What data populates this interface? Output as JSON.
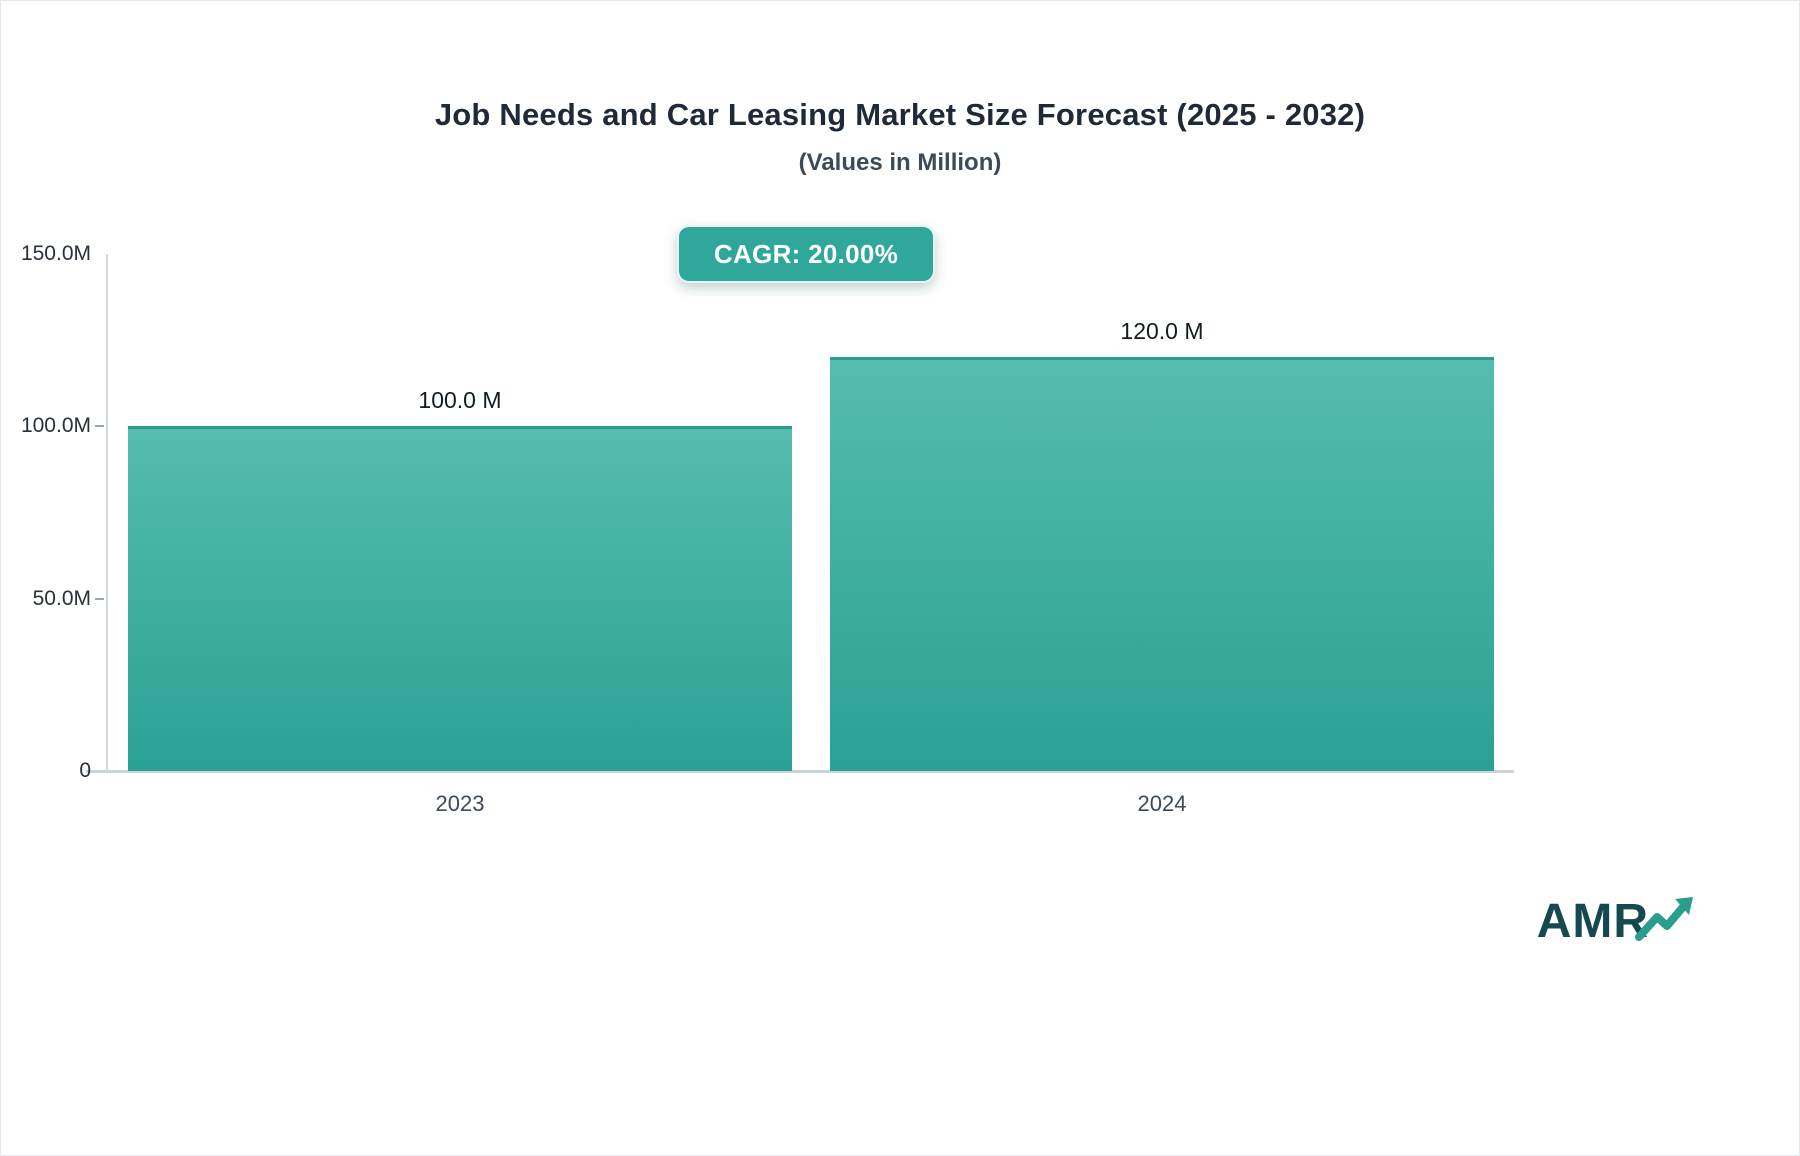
{
  "header": {
    "title": "Job Needs and Car Leasing Market Size Forecast (2025 - 2032)",
    "subtitle": "(Values in Million)",
    "cagr_badge": "CAGR: 20.00%"
  },
  "chart_data": {
    "type": "bar",
    "title": "Job Needs and Car Leasing Market Size Forecast (2025 - 2032)",
    "subtitle": "(Values in Million)",
    "cagr_label": "CAGR: 20.00%",
    "cagr_percent": 20.0,
    "unit": "Million",
    "categories": [
      "2023",
      "2024"
    ],
    "values": [
      100.0,
      120.0
    ],
    "value_labels": [
      "100.0 M",
      "120.0 M"
    ],
    "xlabel": "",
    "ylabel": "",
    "ylim": [
      0,
      150
    ],
    "yticks": [
      {
        "value": 150,
        "label": "150.0M"
      },
      {
        "value": 100,
        "label": "100.0M"
      },
      {
        "value": 50,
        "label": "50.0M"
      },
      {
        "value": 0,
        "label": "0"
      }
    ],
    "grid": false,
    "legend_position": "none",
    "colors": {
      "bar_gradient_top": "#55bcae",
      "bar_gradient_bottom": "#2aa195",
      "bar_top_edge": "#2d9b8f",
      "badge_background": "#2fa79b",
      "badge_text": "#ffffff",
      "axis_line": "#ccd3d6",
      "title_text": "#1f2937",
      "logo_text": "#16494f",
      "logo_arrow": "#2a9d8f"
    }
  },
  "logo": {
    "text": "AMR",
    "arrow_icon": "trend-up-arrow-icon"
  }
}
